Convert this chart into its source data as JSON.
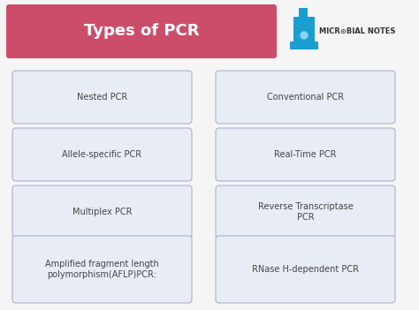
{
  "title": "Types of PCR",
  "title_bg_color": "#cc4d6a",
  "title_text_color": "#ffffff",
  "background_color": "#f5f5f5",
  "box_bg_color": "#e8ecf5",
  "box_border_color": "#aab4cc",
  "box_text_color": "#444444",
  "watermark_text": "MICR⊙BIAL NOTES",
  "watermark_color": "#333333",
  "left_items": [
    "Nested PCR",
    "Allele-specific PCR",
    "Multiplex PCR",
    "Amplified fragment length\npolymorphism(AFLP)PCR:"
  ],
  "right_items": [
    "Conventional PCR",
    "Real-Time PCR",
    "Reverse Transcriptase\nPCR",
    "RNase H-dependent PCR"
  ],
  "figsize": [
    4.74,
    3.51
  ],
  "dpi": 100
}
